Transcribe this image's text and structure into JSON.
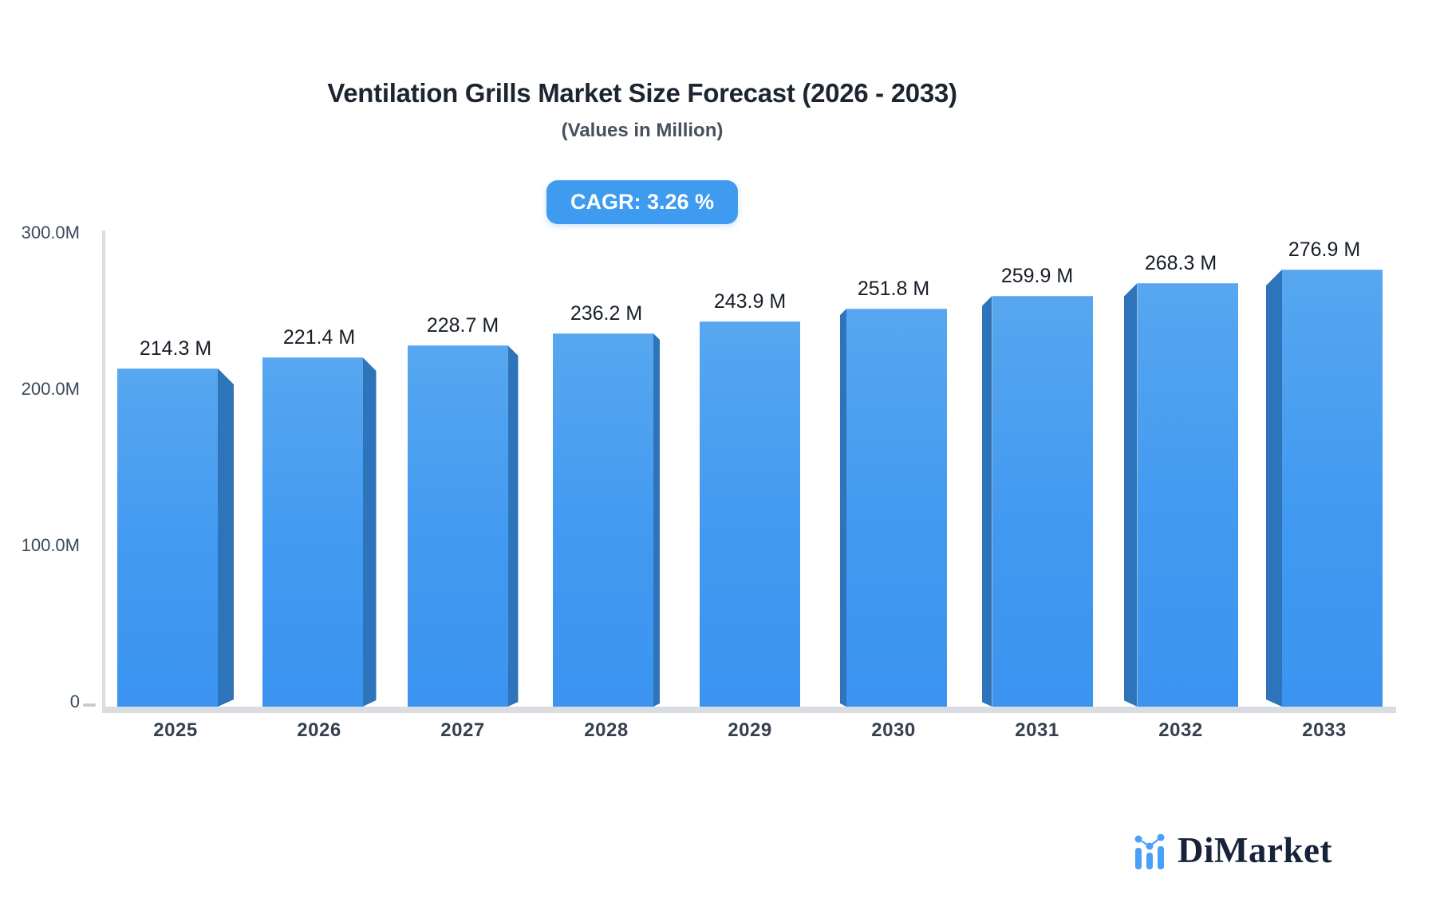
{
  "header": {
    "title": "Ventilation Grills Market Size Forecast (2026 - 2033)",
    "subtitle": "(Values in Million)",
    "cagr_badge": "CAGR: 3.26 %"
  },
  "chart_data": {
    "type": "bar",
    "title": "Ventilation Grills Market Size Forecast (2026 - 2033)",
    "subtitle": "(Values in Million)",
    "categories": [
      "2025",
      "2026",
      "2027",
      "2028",
      "2029",
      "2030",
      "2031",
      "2032",
      "2033"
    ],
    "values": [
      214.3,
      221.4,
      228.7,
      236.2,
      243.9,
      251.8,
      259.9,
      268.3,
      276.9
    ],
    "value_labels": [
      "214.3 M",
      "221.4 M",
      "228.7 M",
      "236.2 M",
      "243.9 M",
      "251.8 M",
      "259.9 M",
      "268.3 M",
      "276.9 M"
    ],
    "unit": "Million",
    "xlabel": "",
    "ylabel": "",
    "ylim": [
      0,
      300
    ],
    "yticks": [
      "300.0M",
      "200.0M",
      "100.0M",
      "0"
    ],
    "ytick_values": [
      300,
      200,
      100,
      0
    ],
    "grid": "off",
    "legend": "none",
    "cagr": "3.26 %",
    "bar_style": "3d-perspective"
  },
  "branding": {
    "logo_text": "DiMarket"
  },
  "colors": {
    "bar_face_top": "#57A7F0",
    "bar_face_bottom": "#3B94F0",
    "bar_side": "#2E74BA",
    "badge_bg": "#3E9BF0",
    "badge_text": "#FFFFFF",
    "axis_gray": "#D9DCE1",
    "title_text": "#1D2531",
    "subtitle_text": "#47505C",
    "value_label_text": "#171E27",
    "year_text": "#36404E",
    "logo_blue": "#4AA0F5",
    "logo_text_color": "#16233B"
  }
}
